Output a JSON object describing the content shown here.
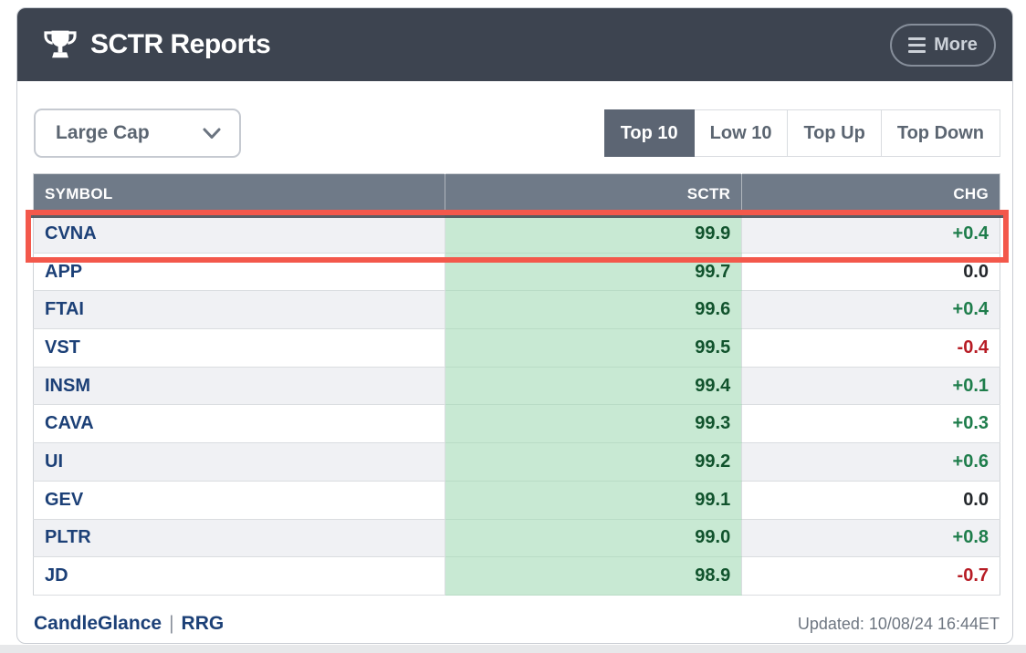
{
  "header": {
    "title": "SCTR Reports",
    "more_label": "More"
  },
  "controls": {
    "group_select": {
      "value": "Large Cap"
    },
    "tabs": [
      {
        "label": "Top 10",
        "active": true
      },
      {
        "label": "Low 10",
        "active": false
      },
      {
        "label": "Top Up",
        "active": false
      },
      {
        "label": "Top Down",
        "active": false
      }
    ]
  },
  "table": {
    "columns": [
      "SYMBOL",
      "SCTR",
      "CHG"
    ],
    "rows": [
      {
        "symbol": "CVNA",
        "sctr": "99.9",
        "chg": "+0.4",
        "highlighted": true
      },
      {
        "symbol": "APP",
        "sctr": "99.7",
        "chg": "0.0",
        "highlighted": false
      },
      {
        "symbol": "FTAI",
        "sctr": "99.6",
        "chg": "+0.4",
        "highlighted": false
      },
      {
        "symbol": "VST",
        "sctr": "99.5",
        "chg": "-0.4",
        "highlighted": false
      },
      {
        "symbol": "INSM",
        "sctr": "99.4",
        "chg": "+0.1",
        "highlighted": false
      },
      {
        "symbol": "CAVA",
        "sctr": "99.3",
        "chg": "+0.3",
        "highlighted": false
      },
      {
        "symbol": "UI",
        "sctr": "99.2",
        "chg": "+0.6",
        "highlighted": false
      },
      {
        "symbol": "GEV",
        "sctr": "99.1",
        "chg": "0.0",
        "highlighted": false
      },
      {
        "symbol": "PLTR",
        "sctr": "99.0",
        "chg": "+0.8",
        "highlighted": false
      },
      {
        "symbol": "JD",
        "sctr": "98.9",
        "chg": "-0.7",
        "highlighted": false
      }
    ]
  },
  "footer": {
    "links": [
      "CandleGlance",
      "RRG"
    ],
    "separator": "|",
    "updated": "Updated: 10/08/24 16:44ET"
  },
  "icons": {
    "title": "trophy-icon",
    "more": "hamburger-menu-icon",
    "select": "chevron-down-icon"
  },
  "colors": {
    "header_dark": "#3d4450",
    "table_header_gray": "#6f7a88",
    "tab_active": "#5c6573",
    "accent_red": "#f3584b",
    "sctr_green": "#c8e9d3",
    "positive_green": "#1e7d4b",
    "negative_red": "#b71c25",
    "link_navy": "#1c4077"
  }
}
